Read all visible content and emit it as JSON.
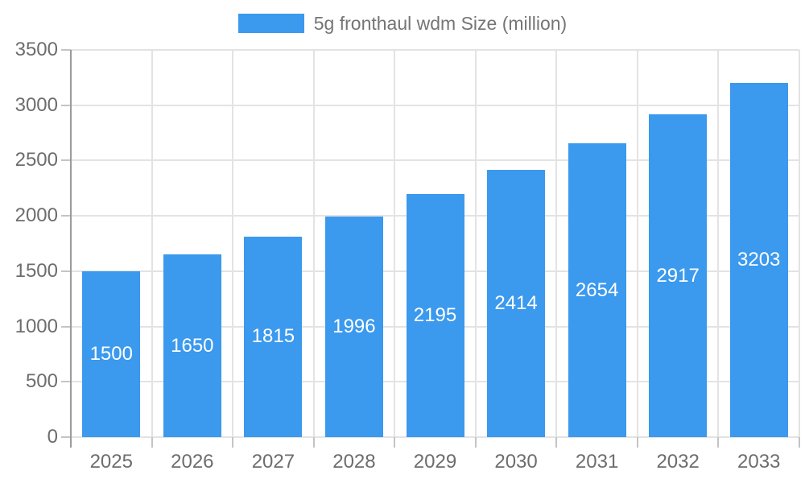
{
  "chart_data": {
    "type": "bar",
    "title": "5g fronthaul wdm Size (million)",
    "categories": [
      "2025",
      "2026",
      "2027",
      "2028",
      "2029",
      "2030",
      "2031",
      "2032",
      "2033"
    ],
    "series": [
      {
        "name": "5g fronthaul wdm Size (million)",
        "values": [
          1500,
          1650,
          1815,
          1996,
          2195,
          2414,
          2654,
          2917,
          3203
        ]
      }
    ],
    "xlabel": "",
    "ylabel": "",
    "ylim": [
      0,
      3500
    ],
    "yticks": [
      0,
      500,
      1000,
      1500,
      2000,
      2500,
      3000,
      3500
    ],
    "grid": "on",
    "legend_position": "top-center",
    "bar_labels_shown": true,
    "colors": {
      "bar": "#3b99ee",
      "bar_label": "#ffffff",
      "axis_text": "#6d6d6d",
      "legend_text": "#757575",
      "gridline": "#e3e3e3",
      "axis_line": "#9b9b9b",
      "tick": "#c4c4c4",
      "background": "#ffffff"
    }
  }
}
